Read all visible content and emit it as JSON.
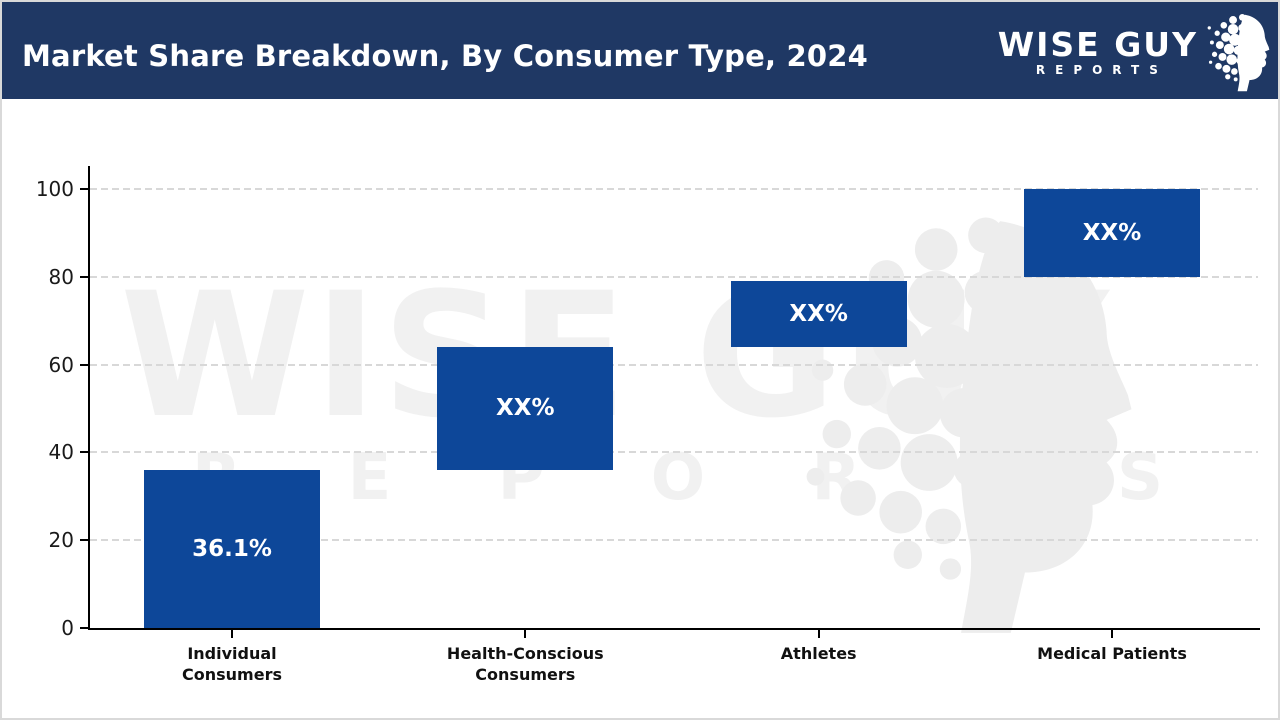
{
  "header": {
    "title": "Market Share Breakdown, By Consumer Type, 2024",
    "bg_color": "#1f3864",
    "logo": {
      "line1": "WISE GUY",
      "line2": "REPORTS"
    }
  },
  "watermark": {
    "line1": "WISE GUY",
    "line2": "R E P O R T S"
  },
  "chart_data": {
    "type": "bar",
    "subtype": "waterfall",
    "title": "Market Share Breakdown, By Consumer Type, 2024",
    "categories": [
      "Individual Consumers",
      "Health-Conscious Consumers",
      "Athletes",
      "Medical Patients"
    ],
    "category_lines": [
      [
        "Individual",
        "Consumers"
      ],
      [
        "Health-Conscious",
        "Consumers"
      ],
      [
        "Athletes"
      ],
      [
        "Medical Patients"
      ]
    ],
    "segments": [
      {
        "category": "Individual Consumers",
        "start": 0,
        "end": 36.1,
        "label": "36.1%"
      },
      {
        "category": "Health-Conscious Consumers",
        "start": 36.1,
        "end": 64.1,
        "label": "XX%"
      },
      {
        "category": "Athletes",
        "start": 64.1,
        "end": 79.1,
        "label": "XX%"
      },
      {
        "category": "Medical Patients",
        "start": 80,
        "end": 100,
        "label": "XX%"
      }
    ],
    "xlabel": "",
    "ylabel": "",
    "yticks": [
      0,
      20,
      40,
      60,
      80,
      100
    ],
    "ylim": [
      0,
      106
    ],
    "grid": "horizontal-dashed",
    "legend": "none",
    "units": "percent",
    "bar_color": "#0d4799",
    "bar_label_color": "#ffffff",
    "gridline_color": "#d8d8d8",
    "axis_color": "#000000"
  }
}
